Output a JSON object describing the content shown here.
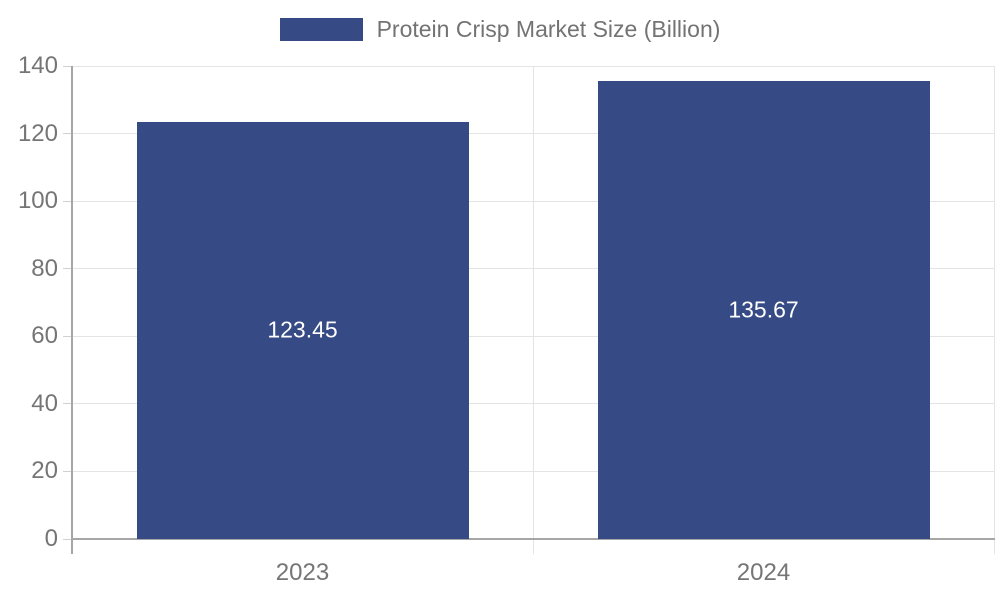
{
  "legend": {
    "label": "Protein Crisp Market Size (Billion)"
  },
  "chart_data": {
    "type": "bar",
    "title": "",
    "series_name": "Protein Crisp Market Size (Billion)",
    "categories": [
      "2023",
      "2024"
    ],
    "values": [
      123.45,
      135.67
    ],
    "value_labels": [
      "123.45",
      "135.67"
    ],
    "xlabel": "",
    "ylabel": "",
    "ylim": [
      0,
      140
    ],
    "ytick_step": 20,
    "ytick_labels": [
      "0",
      "20",
      "40",
      "60",
      "80",
      "100",
      "120",
      "140"
    ],
    "grid": true,
    "legend_position": "top-center",
    "value_label_position": "inside-center",
    "colors": {
      "bar": "#364a85",
      "value_label": "#ffffff",
      "axis_text": "#757575",
      "legend_text": "#737373",
      "gridline": "#e4e4e4",
      "axis_line": "#a6a6a6",
      "background": "#ffffff"
    }
  }
}
